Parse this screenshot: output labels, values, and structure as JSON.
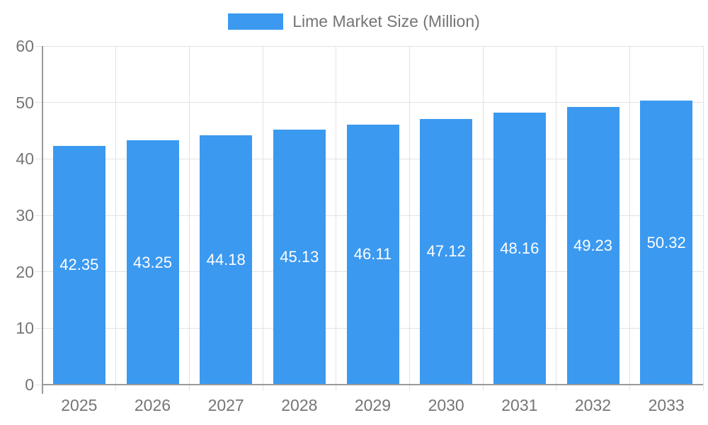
{
  "chart_data": {
    "type": "bar",
    "title": "",
    "legend": {
      "label": "Lime Market Size (Million)",
      "position": "top"
    },
    "categories": [
      "2025",
      "2026",
      "2027",
      "2028",
      "2029",
      "2030",
      "2031",
      "2032",
      "2033"
    ],
    "series": [
      {
        "name": "Lime Market Size (Million)",
        "values": [
          42.35,
          43.25,
          44.18,
          45.13,
          46.11,
          47.12,
          48.16,
          49.23,
          50.32
        ]
      }
    ],
    "value_labels": [
      "42.35",
      "43.25",
      "44.18",
      "45.13",
      "46.11",
      "47.12",
      "48.16",
      "49.23",
      "50.32"
    ],
    "xlabel": "",
    "ylabel": "",
    "ylim": [
      0,
      60
    ],
    "yticks": [
      0,
      10,
      20,
      30,
      40,
      50,
      60
    ],
    "grid": true,
    "colors": {
      "bar": "#3b99f0",
      "grid": "#e2e2e2",
      "axis": "#9a9a9a",
      "text": "#757575",
      "value_label": "#ffffff",
      "background": "#ffffff"
    }
  }
}
